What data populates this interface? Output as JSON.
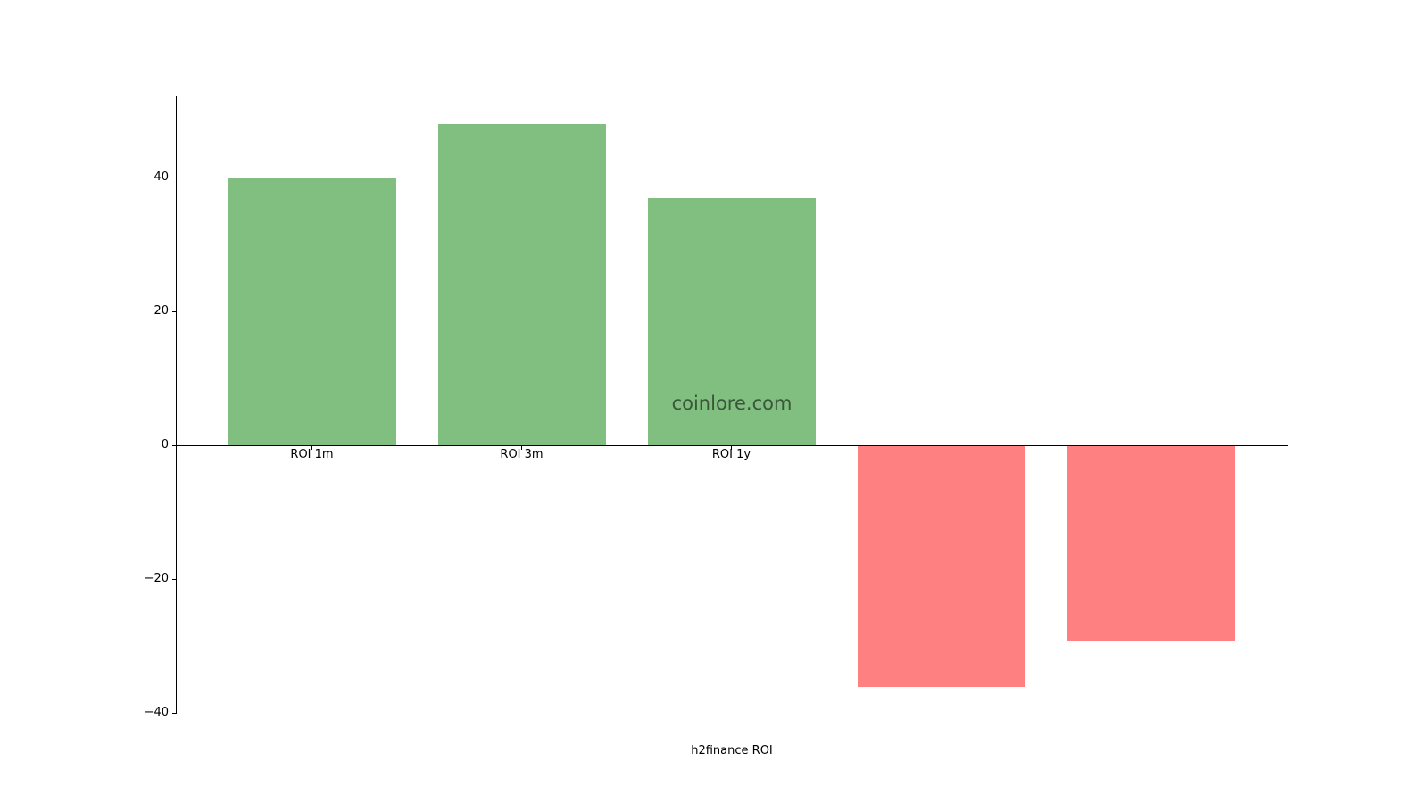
{
  "page": {
    "background": "#ffffff"
  },
  "chart_data": {
    "type": "bar",
    "title": "",
    "xlabel": "h2finance ROI",
    "ylabel": "",
    "watermark": "coinlore.com",
    "categories": [
      "ROI 1m",
      "ROI 3m",
      "ROI 1y",
      "",
      ""
    ],
    "values": [
      40,
      48,
      37,
      -36,
      -29
    ],
    "ylim": [
      -40.2,
      52.2
    ],
    "yticks": [
      {
        "value": 40,
        "label": "40"
      },
      {
        "value": 20,
        "label": "20"
      },
      {
        "value": 0,
        "label": "0"
      },
      {
        "value": -20,
        "label": "−20"
      },
      {
        "value": -40,
        "label": "−40"
      }
    ],
    "bar_colors": {
      "positive": "#80bf80",
      "negative": "#ff8080"
    },
    "axis_color": "#000000",
    "grid": false,
    "legend": "none",
    "note": "x tick labels of the two negative bars are hidden behind the bars"
  }
}
